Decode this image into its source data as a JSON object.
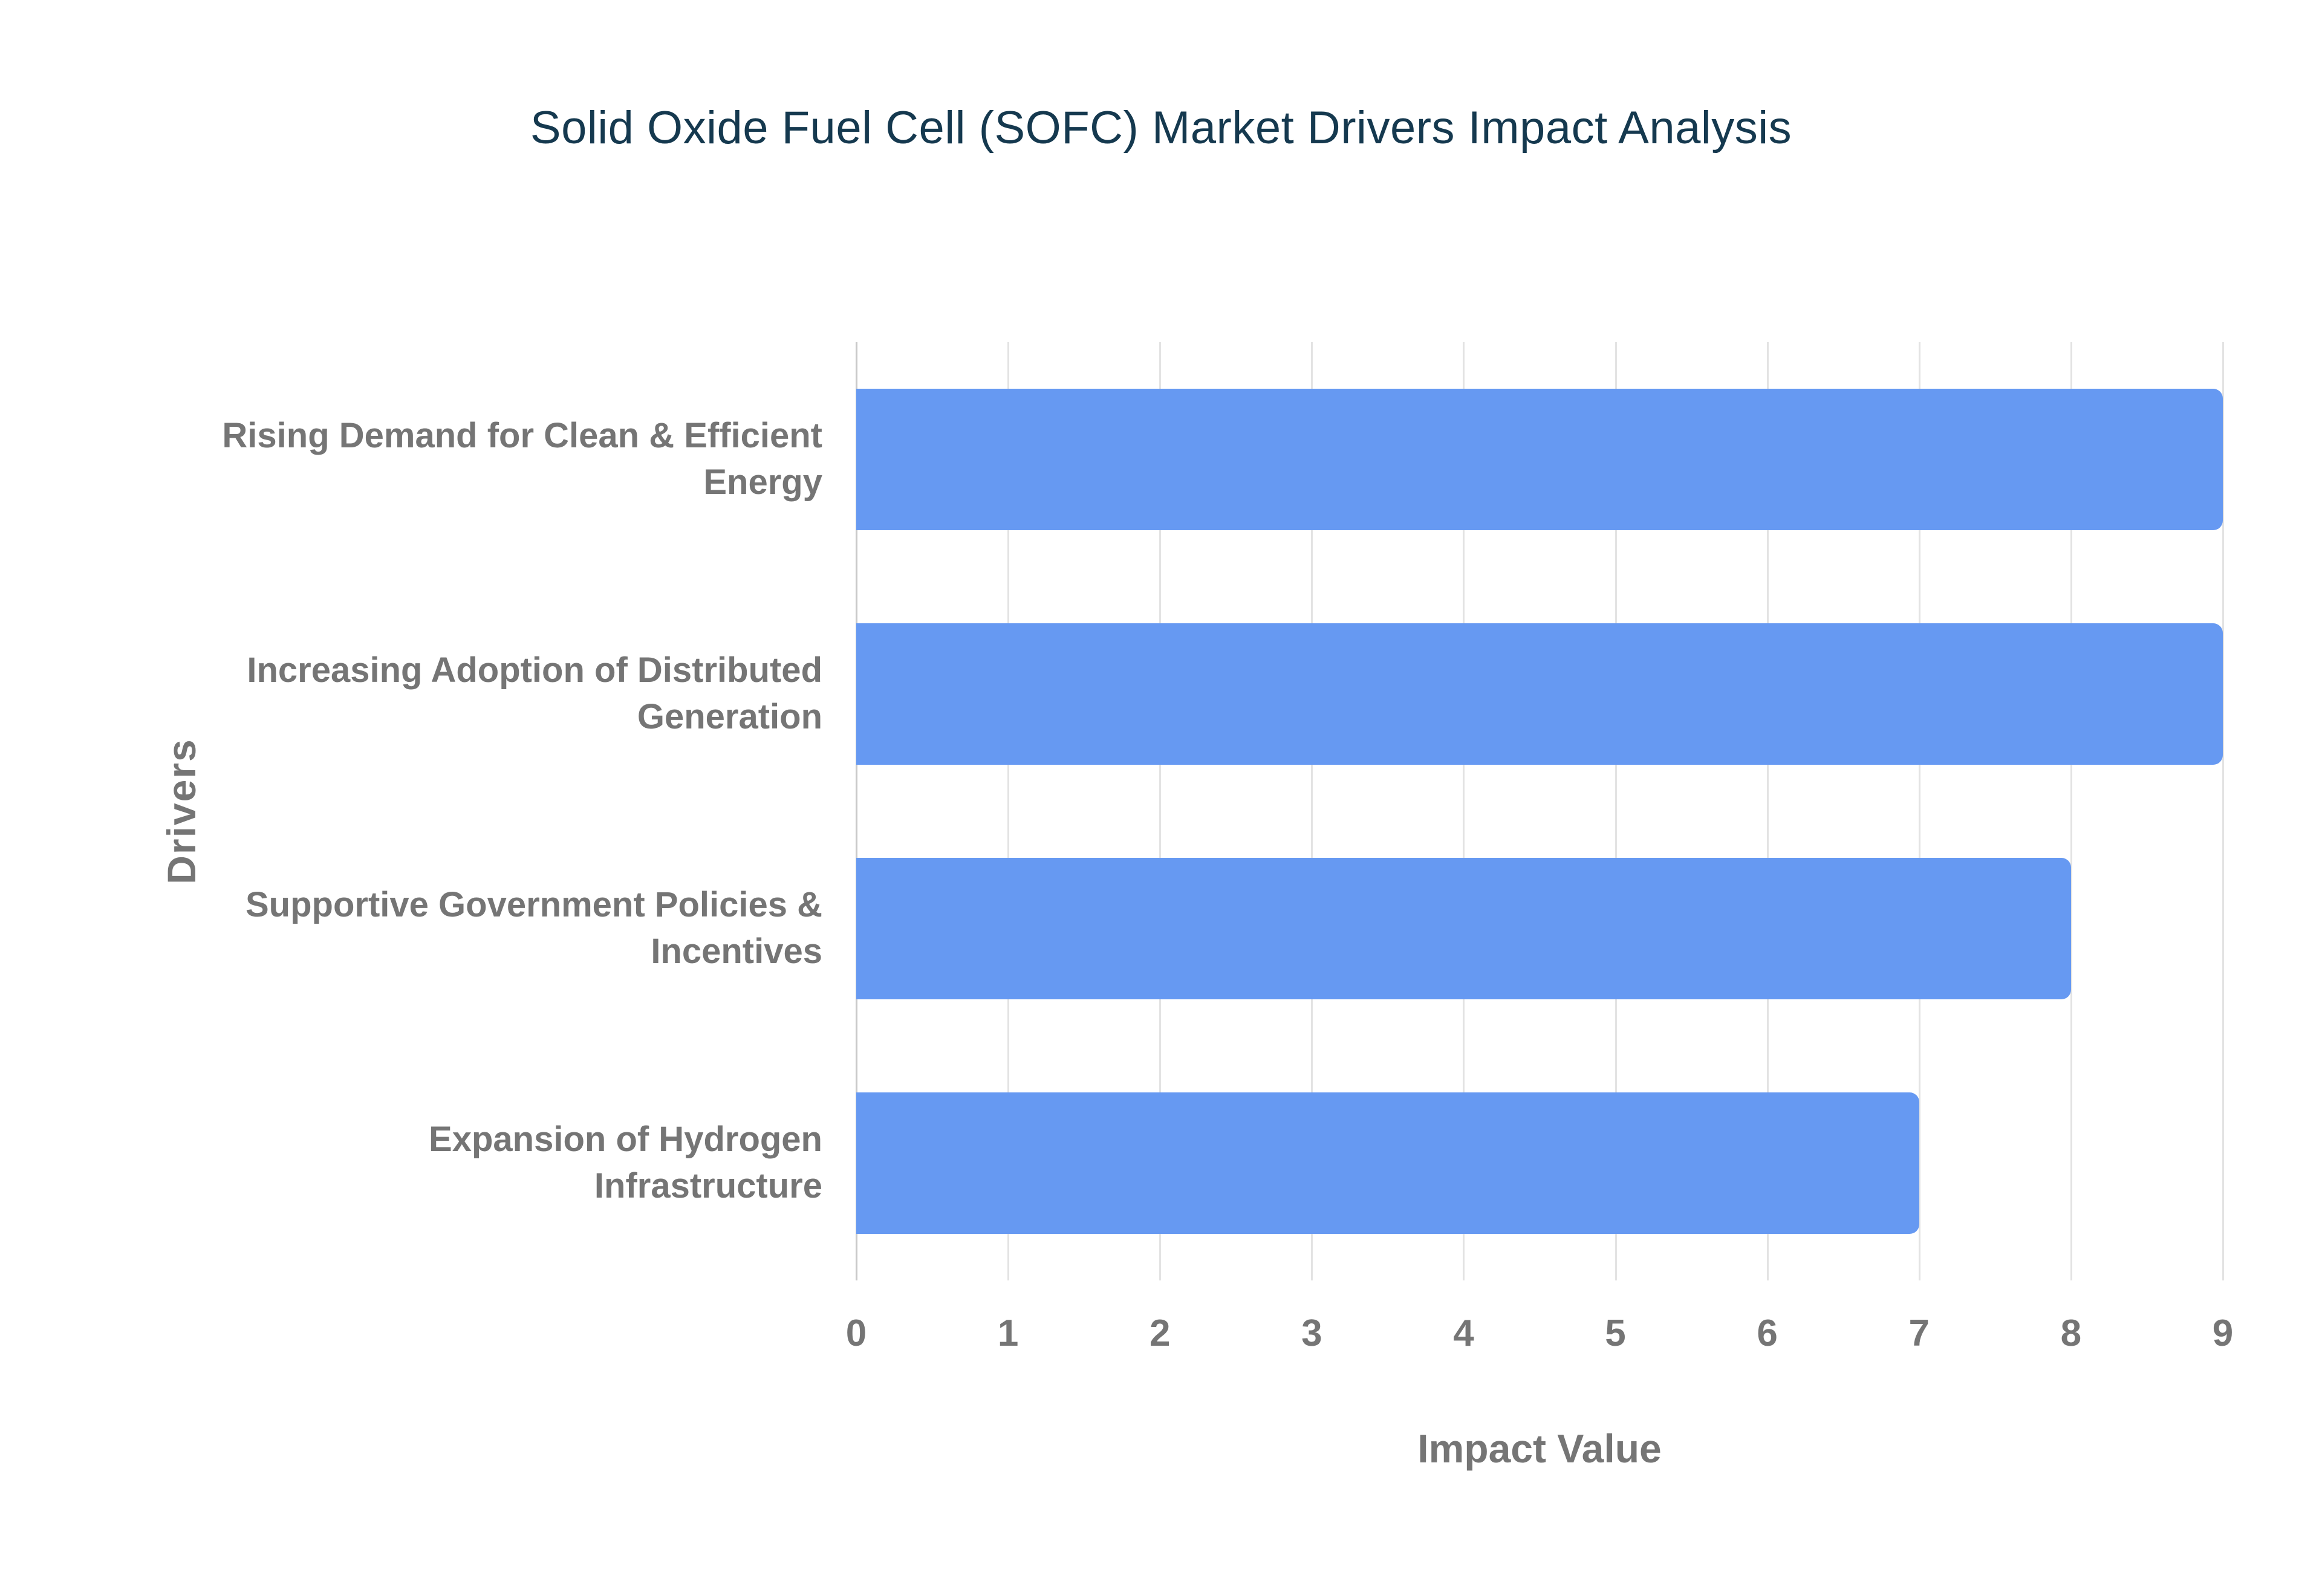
{
  "chart_data": {
    "type": "bar",
    "orientation": "horizontal",
    "title": "Solid Oxide Fuel Cell (SOFC) Market Drivers Impact Analysis",
    "categories": [
      "Rising Demand for Clean & Efficient Energy",
      "Increasing Adoption of Distributed Generation",
      "Supportive Government Policies & Incentives",
      "Expansion of Hydrogen Infrastructure"
    ],
    "values": [
      9,
      9,
      8,
      7
    ],
    "xlabel": "Impact Value",
    "ylabel": "Drivers",
    "xlim": [
      0,
      9
    ],
    "xticks": [
      0,
      1,
      2,
      3,
      4,
      5,
      6,
      7,
      8,
      9
    ],
    "grid": true,
    "legend": false,
    "colors": {
      "bar": "#6699F2",
      "title": "#15394F",
      "axis_text": "#757575",
      "gridline": "#E3E3E3",
      "zero_line": "#C9C9C9"
    }
  }
}
